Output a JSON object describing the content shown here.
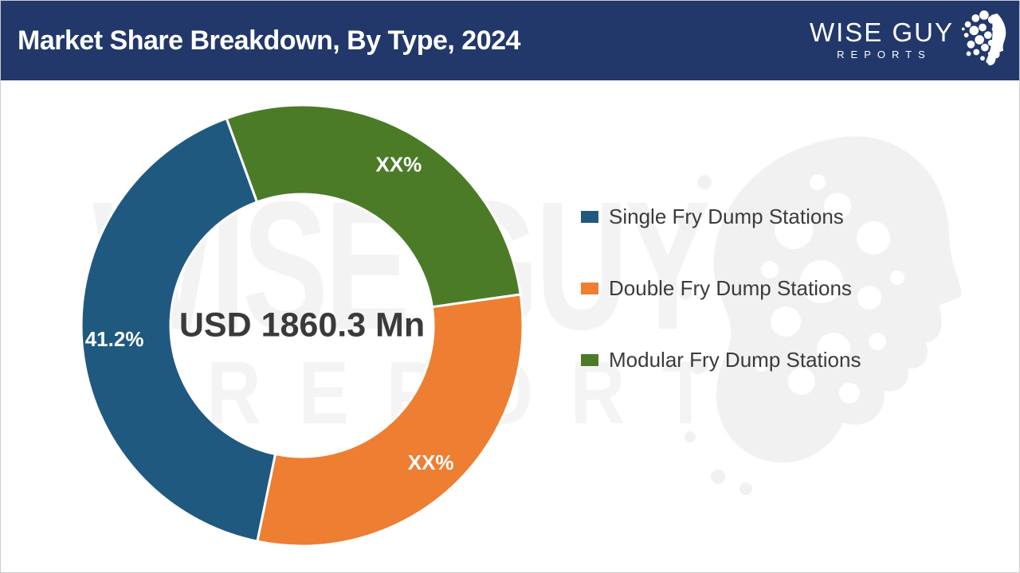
{
  "header": {
    "title": "Market Share Breakdown, By Type, 2024",
    "bg_color": "#22386B",
    "logo": {
      "line1": "WISE GUY",
      "line2": "REPORTS"
    }
  },
  "watermark": {
    "line1": "WISE GUY",
    "line2": "REPORTS"
  },
  "chart_data": {
    "type": "pie",
    "variant": "donut",
    "title": "Market Share Breakdown, By Type, 2024",
    "center_label": "USD 1860.3 Mn",
    "start_angle_deg": 110,
    "direction": "counterclockwise",
    "legend_position": "right",
    "segments": [
      {
        "label": "Single Fry Dump Stations",
        "display_value": "41.2%",
        "value_pct": 41.2,
        "color": "#1F5980"
      },
      {
        "label": "Double Fry Dump Stations",
        "display_value": "XX%",
        "value_pct": 30.5,
        "color": "#EE7E32"
      },
      {
        "label": "Modular Fry Dump Stations",
        "display_value": "XX%",
        "value_pct": 28.3,
        "color": "#4B7B27"
      }
    ]
  }
}
